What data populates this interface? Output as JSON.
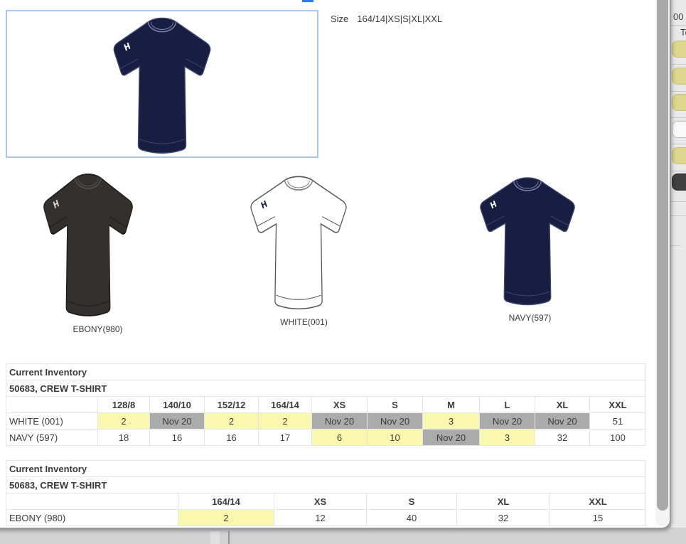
{
  "size_info": {
    "label": "Size",
    "value": "164/14|XS|S|XL|XXL"
  },
  "product": {
    "number": "50683",
    "name": "CREW T-SHIRT"
  },
  "thumbnails": [
    {
      "label": "EBONY(980)",
      "color_name": "EBONY",
      "color_code": "980"
    },
    {
      "label": "WHITE(001)",
      "color_name": "WHITE",
      "color_code": "001"
    },
    {
      "label": "NAVY(597)",
      "color_name": "NAVY",
      "color_code": "597"
    }
  ],
  "selected_color": "NAVY(597)",
  "tables": [
    {
      "title": "Current Inventory",
      "subtitle": "50683, CREW T-SHIRT",
      "columns": [
        "128/8",
        "140/10",
        "152/12",
        "164/14",
        "XS",
        "S",
        "M",
        "L",
        "XL",
        "XXL"
      ],
      "rows": [
        {
          "label": "WHITE (001)",
          "cells": [
            {
              "v": "2",
              "s": "low"
            },
            {
              "v": "Nov 20",
              "s": "date"
            },
            {
              "v": "2",
              "s": "low"
            },
            {
              "v": "2",
              "s": "low"
            },
            {
              "v": "Nov 20",
              "s": "date"
            },
            {
              "v": "Nov 20",
              "s": "date"
            },
            {
              "v": "3",
              "s": "low"
            },
            {
              "v": "Nov 20",
              "s": "date"
            },
            {
              "v": "Nov 20",
              "s": "date"
            },
            {
              "v": "51",
              "s": ""
            }
          ]
        },
        {
          "label": "NAVY (597)",
          "cells": [
            {
              "v": "18",
              "s": ""
            },
            {
              "v": "16",
              "s": ""
            },
            {
              "v": "16",
              "s": ""
            },
            {
              "v": "17",
              "s": ""
            },
            {
              "v": "6",
              "s": "low"
            },
            {
              "v": "10",
              "s": "low"
            },
            {
              "v": "Nov 20",
              "s": "date"
            },
            {
              "v": "3",
              "s": "low"
            },
            {
              "v": "32",
              "s": ""
            },
            {
              "v": "100",
              "s": ""
            }
          ]
        }
      ]
    },
    {
      "title": "Current Inventory",
      "subtitle": "50683, CREW T-SHIRT",
      "columns": [
        "164/14",
        "XS",
        "S",
        "XL",
        "XXL"
      ],
      "rows": [
        {
          "label": "EBONY (980)",
          "cells": [
            {
              "v": "2",
              "s": "low"
            },
            {
              "v": "12",
              "s": ""
            },
            {
              "v": "40",
              "s": ""
            },
            {
              "v": "32",
              "s": ""
            },
            {
              "v": "15",
              "s": ""
            }
          ]
        }
      ]
    }
  ],
  "right_panel": {
    "value_fragment": "00",
    "label_fragment": "To",
    "badges": [
      {
        "type": "yellow"
      },
      {
        "type": "yellow"
      },
      {
        "type": "yellow"
      },
      {
        "type": "white"
      },
      {
        "type": "yellow"
      },
      {
        "type": "dark"
      }
    ]
  },
  "colors": {
    "selection_border": "#A5C7F0",
    "low_stock_cell": "#FAF8AF",
    "backorder_cell": "#ABABAB",
    "navy_shirt": "#171E41",
    "ebony_shirt": "#33302D",
    "accent_blue": "#2D7CE0",
    "badge_yellow": "#DCD78C"
  }
}
